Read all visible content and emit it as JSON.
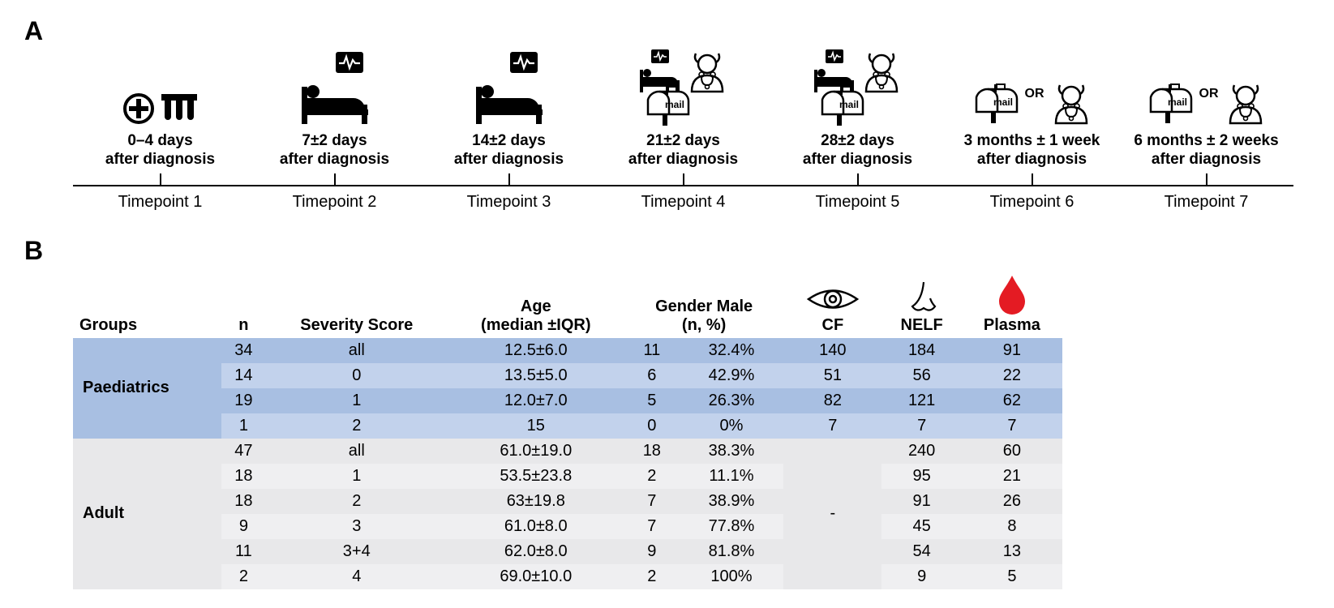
{
  "panelA": {
    "label": "A",
    "afterText": "after diagnosis",
    "timepoints": [
      {
        "days": "0–4 days",
        "label": "Timepoint 1",
        "icons": [
          "plus",
          "tubes"
        ]
      },
      {
        "days": "7±2 days",
        "label": "Timepoint 2",
        "icons": [
          "bed",
          "monitor"
        ]
      },
      {
        "days": "14±2 days",
        "label": "Timepoint 3",
        "icons": [
          "bed",
          "monitor"
        ]
      },
      {
        "days": "21±2 days",
        "label": "Timepoint 4",
        "icons": [
          "bed-small",
          "monitor-small",
          "nurse",
          "mailbox"
        ]
      },
      {
        "days": "28±2 days",
        "label": "Timepoint 5",
        "icons": [
          "bed-small",
          "monitor-small",
          "nurse",
          "mailbox"
        ]
      },
      {
        "days": "3 months ± 1 week",
        "label": "Timepoint 6",
        "icons": [
          "mailbox",
          "or",
          "nurse"
        ]
      },
      {
        "days": "6 months ± 2 weeks",
        "label": "Timepoint 7",
        "icons": [
          "mailbox",
          "or",
          "nurse"
        ]
      }
    ],
    "orText": "OR"
  },
  "panelB": {
    "label": "B",
    "columns": [
      "Groups",
      "n",
      "Severity Score",
      "Age\n(median ±IQR)",
      "Gender Male\n(n, %)",
      "CF",
      "NELF",
      "Plasma"
    ],
    "headerIcons": {
      "CF": "eye",
      "NELF": "nose",
      "Plasma": "blood"
    },
    "groups": [
      {
        "name": "Paediatrics",
        "styleBase": "paed",
        "rows": [
          {
            "n": "34",
            "sev": "all",
            "age": "12.5±6.0",
            "gn": "11",
            "gp": "32.4%",
            "cf": "140",
            "nelf": "184",
            "plasma": "91"
          },
          {
            "n": "14",
            "sev": "0",
            "age": "13.5±5.0",
            "gn": "6",
            "gp": "42.9%",
            "cf": "51",
            "nelf": "56",
            "plasma": "22"
          },
          {
            "n": "19",
            "sev": "1",
            "age": "12.0±7.0",
            "gn": "5",
            "gp": "26.3%",
            "cf": "82",
            "nelf": "121",
            "plasma": "62"
          },
          {
            "n": "1",
            "sev": "2",
            "age": "15",
            "gn": "0",
            "gp": "0%",
            "cf": "7",
            "nelf": "7",
            "plasma": "7"
          }
        ]
      },
      {
        "name": "Adult",
        "styleBase": "adult",
        "cfMerged": "-",
        "rows": [
          {
            "n": "47",
            "sev": "all",
            "age": "61.0±19.0",
            "gn": "18",
            "gp": "38.3%",
            "nelf": "240",
            "plasma": "60"
          },
          {
            "n": "18",
            "sev": "1",
            "age": "53.5±23.8",
            "gn": "2",
            "gp": "11.1%",
            "nelf": "95",
            "plasma": "21"
          },
          {
            "n": "18",
            "sev": "2",
            "age": "63±19.8",
            "gn": "7",
            "gp": "38.9%",
            "nelf": "91",
            "plasma": "26"
          },
          {
            "n": "9",
            "sev": "3",
            "age": "61.0±8.0",
            "gn": "7",
            "gp": "77.8%",
            "nelf": "45",
            "plasma": "8"
          },
          {
            "n": "11",
            "sev": "3+4",
            "age": "62.0±8.0",
            "gn": "9",
            "gp": "81.8%",
            "nelf": "54",
            "plasma": "13"
          },
          {
            "n": "2",
            "sev": "4",
            "age": "69.0±10.0",
            "gn": "2",
            "gp": "100%",
            "nelf": "9",
            "plasma": "5"
          }
        ]
      }
    ],
    "colors": {
      "paed": "#a8bfe2",
      "paedAlt": "#c2d2ec",
      "adult": "#e8e8ea",
      "adultAlt": "#efeff1",
      "blood": "#e41b23"
    }
  }
}
